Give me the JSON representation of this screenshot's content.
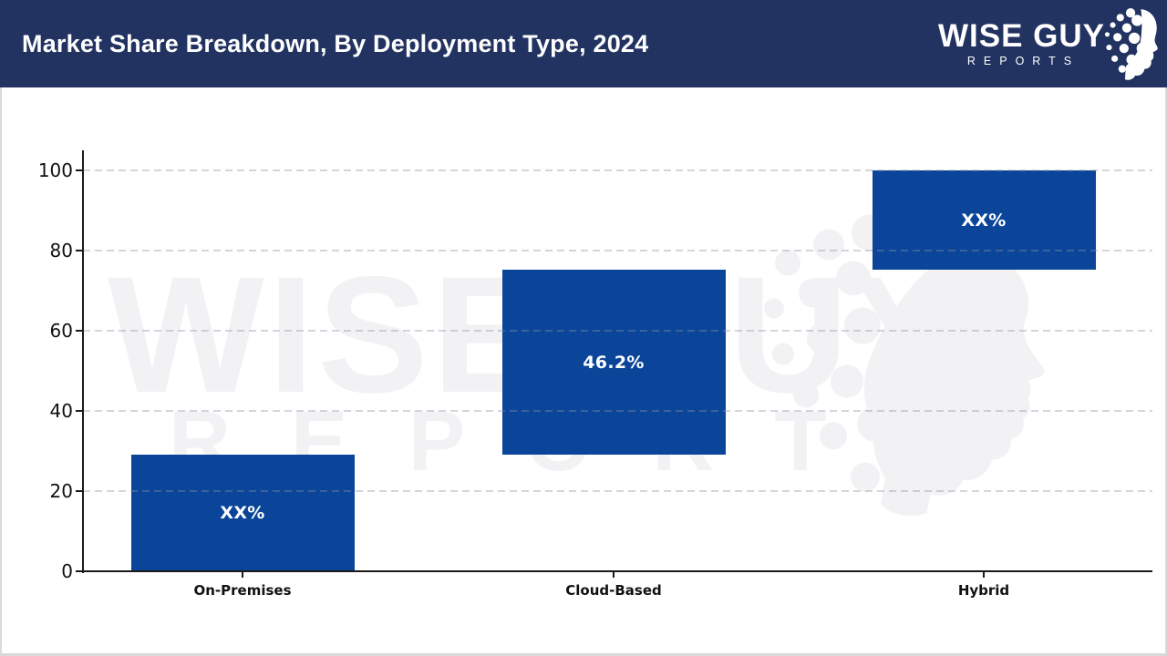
{
  "header": {
    "title": "Market Share Breakdown, By Deployment Type, 2024",
    "logo": {
      "wordmark": "WISE GUY",
      "subtext": "REPORTS"
    }
  },
  "watermark": {
    "line1": "WISE GUY",
    "line2": "REPORTS"
  },
  "chart_data": {
    "type": "bar",
    "subtype": "floating-cumulative-segments",
    "title": "Market Share Breakdown, By Deployment Type, 2024",
    "categories": [
      "On-Premises",
      "Cloud-Based",
      "Hybrid"
    ],
    "segments": [
      {
        "category": "On-Premises",
        "start": 0,
        "end": 29,
        "value_label": "XX%"
      },
      {
        "category": "Cloud-Based",
        "start": 29,
        "end": 75.2,
        "value_label": "46.2%"
      },
      {
        "category": "Hybrid",
        "start": 75.2,
        "end": 100,
        "value_label": "XX%"
      }
    ],
    "xlabel": "",
    "ylabel": "",
    "ylim": [
      0,
      100
    ],
    "yticks": [
      0,
      20,
      40,
      60,
      80,
      100
    ],
    "grid": "horizontal-dashed",
    "legend": "none",
    "bar_color": "#0a4599",
    "bar_label_color": "#ffffff"
  },
  "colors": {
    "header_bg": "#223361",
    "axis": "#1a1a1a",
    "grid": "#d9dce3",
    "watermark": "#f2f2f5",
    "page_border": "#d9d9d9"
  }
}
